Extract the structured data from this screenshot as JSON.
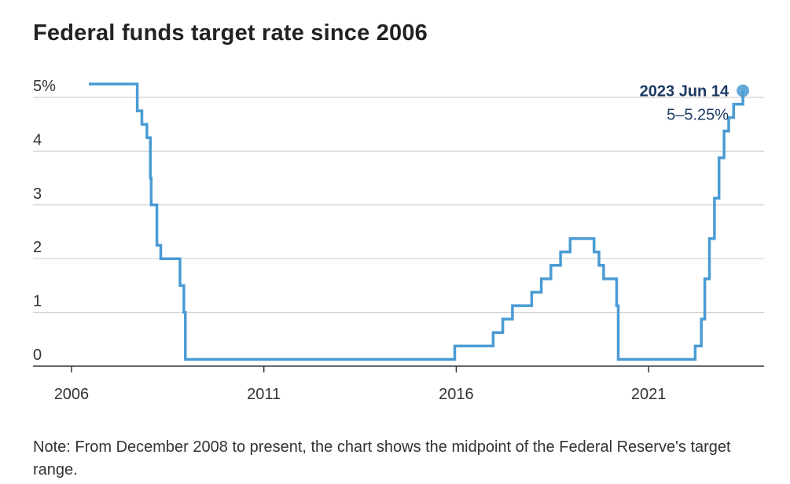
{
  "title": "Federal funds target rate since 2006",
  "note": "Note: From December 2008 to present, the chart shows the midpoint of the Federal Reserve's target range.",
  "colors": {
    "line": "#4a9bd4",
    "annotation": "#1c3a63",
    "grid": "#d0d0d0",
    "axis": "#333333"
  },
  "chart_data": {
    "type": "line",
    "title": "Federal funds target rate since 2006",
    "xlabel": "",
    "ylabel": "",
    "xlim": [
      2005.0,
      2024.0
    ],
    "ylim": [
      0,
      5.25
    ],
    "x_ticks": [
      2006,
      2011,
      2016,
      2021
    ],
    "y_ticks": [
      {
        "value": 0,
        "label": "0"
      },
      {
        "value": 1,
        "label": "1"
      },
      {
        "value": 2,
        "label": "2"
      },
      {
        "value": 3,
        "label": "3"
      },
      {
        "value": 4,
        "label": "4"
      },
      {
        "value": 5,
        "label": "5%"
      }
    ],
    "grid": true,
    "step": true,
    "series": [
      {
        "x": [
          2006.45,
          2007.71,
          2007.83,
          2007.96,
          2008.05,
          2008.07,
          2008.22,
          2008.32,
          2008.41,
          2008.82,
          2008.92,
          2008.96,
          2015.96,
          2016.96,
          2017.21,
          2017.46,
          2017.96,
          2018.21,
          2018.46,
          2018.71,
          2018.96,
          2019.58,
          2019.71,
          2019.83,
          2020.17,
          2020.21,
          2022.21,
          2022.37,
          2022.46,
          2022.58,
          2022.71,
          2022.83,
          2022.96,
          2023.08,
          2023.21,
          2023.45
        ],
        "y": [
          5.25,
          4.75,
          4.5,
          4.25,
          3.5,
          3.0,
          2.25,
          2.0,
          2.0,
          1.5,
          1.0,
          0.125,
          0.375,
          0.625,
          0.875,
          1.125,
          1.375,
          1.625,
          1.875,
          2.125,
          2.375,
          2.125,
          1.875,
          1.625,
          1.125,
          0.125,
          0.375,
          0.875,
          1.625,
          2.375,
          3.125,
          3.875,
          4.375,
          4.625,
          4.875,
          5.125
        ]
      }
    ],
    "annotation": {
      "x": 2023.45,
      "y": 5.125,
      "date": "2023 Jun 14",
      "value": "5–5.25%"
    }
  }
}
